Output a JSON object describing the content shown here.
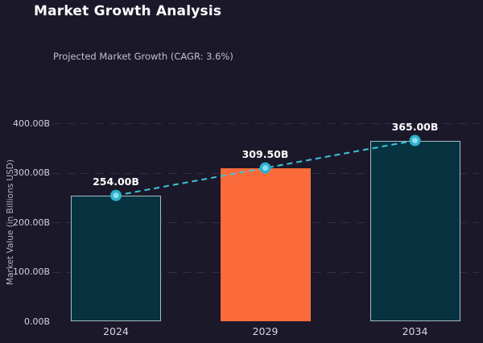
{
  "page": {
    "title": "Market Growth Analysis",
    "subtitle": "Projected Market Growth (CAGR: 3.6%)"
  },
  "chart_data": {
    "type": "bar",
    "title": "Market Growth Analysis",
    "subtitle": "Projected Market Growth (CAGR: 3.6%)",
    "categories": [
      "2024",
      "2029",
      "2034"
    ],
    "series": [
      {
        "name": "Market Value",
        "values": [
          254.0,
          309.5,
          365.0
        ]
      }
    ],
    "value_labels": [
      "254.00B",
      "309.50B",
      "365.00B"
    ],
    "xlabel": "",
    "ylabel": "Market Value (in Billions USD)",
    "ylim": [
      0,
      400
    ],
    "yticks": [
      0,
      100,
      200,
      300,
      400
    ],
    "ytick_labels": [
      "0.00B",
      "100.00B",
      "200.00B",
      "300.00B",
      "400.00B"
    ],
    "grid": "horizontal-dashed",
    "legend": "none",
    "trend_line": {
      "style": "dashed",
      "color": "#3fc3dc",
      "marker_color": "#2fb0cd",
      "marker_core_color": "#85e0ee"
    },
    "bar_colors": [
      "#073240",
      "#fb6a3b",
      "#073240"
    ],
    "bar_border_colors": [
      "#a3bcc8",
      "#fb6a3b",
      "#a3bcc8"
    ],
    "colors": {
      "background": "#1b1929",
      "grid": "#322f45",
      "title_text": "#fafafa",
      "secondary_text": "#c2bfcd"
    }
  }
}
